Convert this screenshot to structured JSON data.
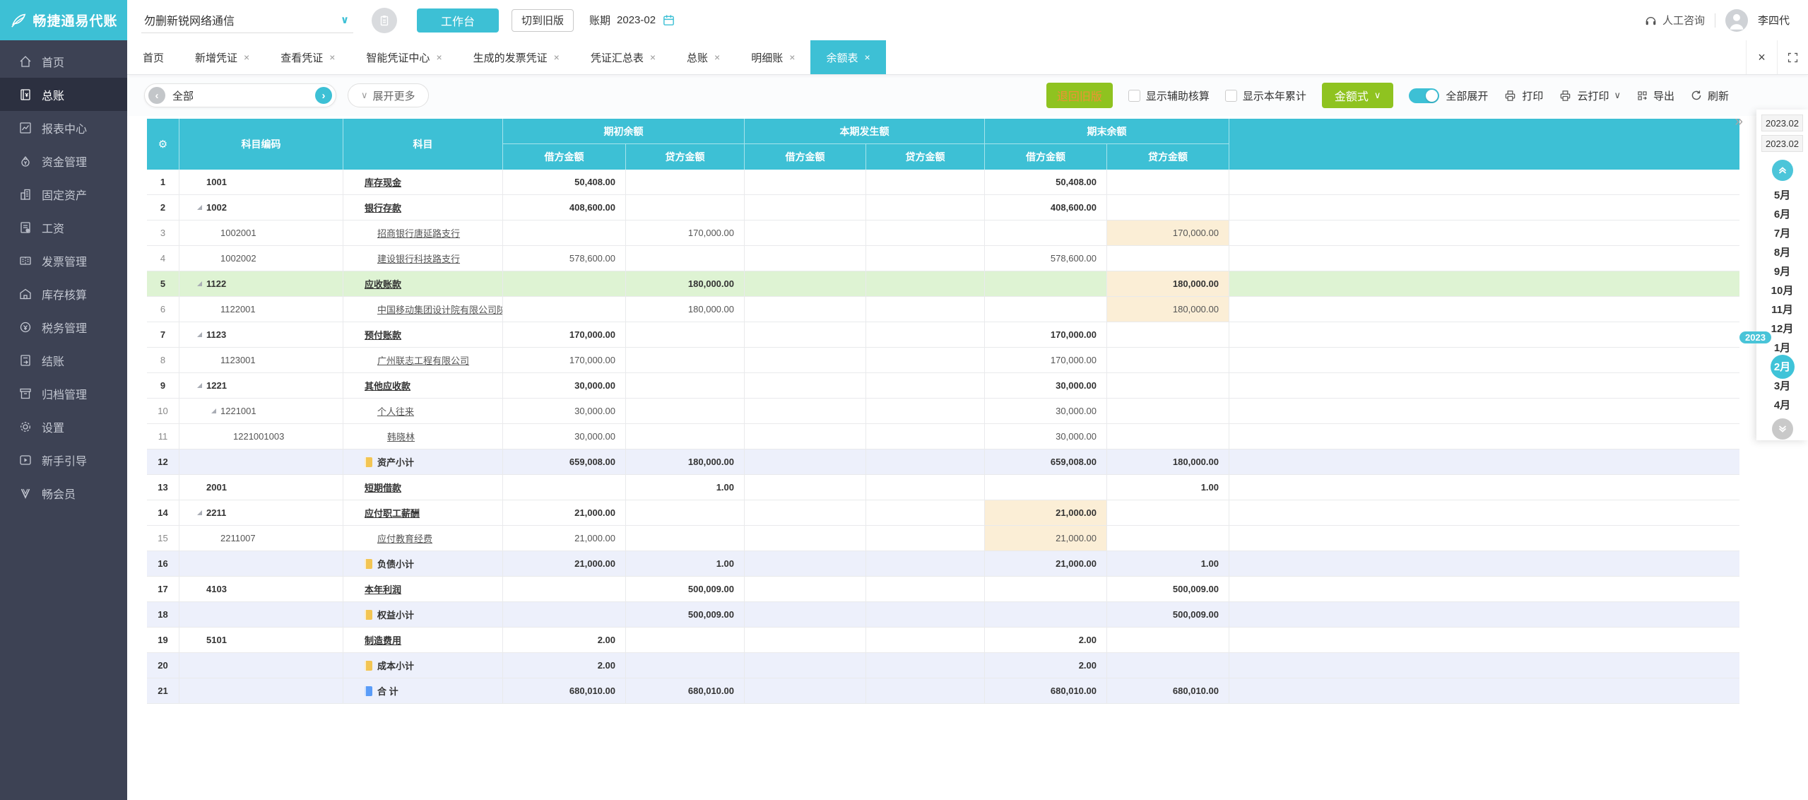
{
  "icons": {
    "close": "×",
    "chevron_down": "∨",
    "chevron_left": "‹",
    "chevron_right": "›",
    "collapse_panel": "»",
    "gear": "⚙"
  },
  "brand": {
    "name": "畅捷通易代账"
  },
  "header": {
    "company": "勿删新锐网络通信",
    "workbench": "工作台",
    "switch_old": "切到旧版",
    "period_label": "账期",
    "period_value": "2023-02",
    "support": "人工咨询",
    "user": "李四代"
  },
  "sidebar": {
    "items": [
      {
        "key": "home",
        "icon": "home",
        "label": "首页",
        "active": false
      },
      {
        "key": "general-ledger",
        "icon": "ledger",
        "label": "总账",
        "active": true
      },
      {
        "key": "report-center",
        "icon": "report",
        "label": "报表中心",
        "active": false
      },
      {
        "key": "funds",
        "icon": "funds",
        "label": "资金管理",
        "active": false
      },
      {
        "key": "fixed-assets",
        "icon": "assets",
        "label": "固定资产",
        "active": false
      },
      {
        "key": "salary",
        "icon": "salary",
        "label": "工资",
        "active": false
      },
      {
        "key": "invoice",
        "icon": "invoice",
        "label": "发票管理",
        "active": false
      },
      {
        "key": "inventory",
        "icon": "inventory",
        "label": "库存核算",
        "active": false
      },
      {
        "key": "tax",
        "icon": "tax",
        "label": "税务管理",
        "active": false
      },
      {
        "key": "closing",
        "icon": "closing",
        "label": "结账",
        "active": false
      },
      {
        "key": "archive",
        "icon": "archive",
        "label": "归档管理",
        "active": false
      },
      {
        "key": "settings",
        "icon": "settings",
        "label": "设置",
        "active": false
      },
      {
        "key": "guide",
        "icon": "guide",
        "label": "新手引导",
        "active": false
      },
      {
        "key": "member",
        "icon": "member",
        "label": "畅会员",
        "active": false
      }
    ]
  },
  "tabs": {
    "items": [
      {
        "key": "home",
        "label": "首页",
        "closable": false,
        "active": false
      },
      {
        "key": "new-voucher",
        "label": "新增凭证",
        "closable": true,
        "active": false
      },
      {
        "key": "view-voucher",
        "label": "查看凭证",
        "closable": true,
        "active": false
      },
      {
        "key": "smart-voucher-center",
        "label": "智能凭证中心",
        "closable": true,
        "active": false
      },
      {
        "key": "generated-invoice-voucher",
        "label": "生成的发票凭证",
        "closable": true,
        "active": false
      },
      {
        "key": "voucher-summary",
        "label": "凭证汇总表",
        "closable": true,
        "active": false
      },
      {
        "key": "general-ledger",
        "label": "总账",
        "closable": true,
        "active": false
      },
      {
        "key": "detail-ledger",
        "label": "明细账",
        "closable": true,
        "active": false
      },
      {
        "key": "balance-sheet",
        "label": "余额表",
        "closable": true,
        "active": true
      }
    ]
  },
  "toolbar": {
    "filter_value": "全部",
    "expand_more": "展开更多",
    "back_to_old": "退回旧版",
    "show_auxiliary": "显示辅助核算",
    "show_ytd": "显示本年累计",
    "amount_style": "金额式",
    "expand_all": "全部展开",
    "print": "打印",
    "cloud_print": "云打印",
    "export": "导出",
    "refresh": "刷新"
  },
  "table": {
    "headers": {
      "code": "科目编码",
      "subject": "科目",
      "groups": [
        "期初余额",
        "本期发生额",
        "期末余额"
      ],
      "debit": "借方金额",
      "credit": "贷方金额"
    },
    "rows": [
      {
        "n": "1",
        "code": "1001",
        "lvl": 0,
        "exp": false,
        "name": "库存现金",
        "link": true,
        "bold": true,
        "bg": "",
        "icon": "",
        "cells": [
          "50,408.00",
          "",
          "",
          "",
          "50,408.00",
          ""
        ],
        "hl": []
      },
      {
        "n": "2",
        "code": "1002",
        "lvl": 0,
        "exp": true,
        "name": "银行存款",
        "link": true,
        "bold": true,
        "bg": "",
        "icon": "",
        "cells": [
          "408,600.00",
          "",
          "",
          "",
          "408,600.00",
          ""
        ],
        "hl": []
      },
      {
        "n": "3",
        "code": "1002001",
        "lvl": 1,
        "exp": false,
        "name": "招商银行唐延路支行",
        "link": true,
        "bold": false,
        "bg": "",
        "icon": "",
        "cells": [
          "",
          "170,000.00",
          "",
          "",
          "",
          "170,000.00"
        ],
        "hl": [
          5
        ]
      },
      {
        "n": "4",
        "code": "1002002",
        "lvl": 1,
        "exp": false,
        "name": "建设银行科技路支行",
        "link": true,
        "bold": false,
        "bg": "",
        "icon": "",
        "cells": [
          "578,600.00",
          "",
          "",
          "",
          "578,600.00",
          ""
        ],
        "hl": []
      },
      {
        "n": "5",
        "code": "1122",
        "lvl": 0,
        "exp": true,
        "name": "应收账款",
        "link": true,
        "bold": true,
        "bg": "green",
        "icon": "",
        "cells": [
          "",
          "180,000.00",
          "",
          "",
          "",
          "180,000.00"
        ],
        "hl": [
          5
        ]
      },
      {
        "n": "6",
        "code": "1122001",
        "lvl": 1,
        "exp": false,
        "name": "中国移动集团设计院有限公司陕",
        "link": true,
        "bold": false,
        "bg": "",
        "icon": "",
        "cells": [
          "",
          "180,000.00",
          "",
          "",
          "",
          "180,000.00"
        ],
        "hl": [
          5
        ]
      },
      {
        "n": "7",
        "code": "1123",
        "lvl": 0,
        "exp": true,
        "name": "预付账款",
        "link": true,
        "bold": true,
        "bg": "",
        "icon": "",
        "cells": [
          "170,000.00",
          "",
          "",
          "",
          "170,000.00",
          ""
        ],
        "hl": []
      },
      {
        "n": "8",
        "code": "1123001",
        "lvl": 1,
        "exp": false,
        "name": "广州联志工程有限公司",
        "link": true,
        "bold": false,
        "bg": "",
        "icon": "",
        "cells": [
          "170,000.00",
          "",
          "",
          "",
          "170,000.00",
          ""
        ],
        "hl": []
      },
      {
        "n": "9",
        "code": "1221",
        "lvl": 0,
        "exp": true,
        "name": "其他应收款",
        "link": true,
        "bold": true,
        "bg": "",
        "icon": "",
        "cells": [
          "30,000.00",
          "",
          "",
          "",
          "30,000.00",
          ""
        ],
        "hl": []
      },
      {
        "n": "10",
        "code": "1221001",
        "lvl": 1,
        "exp": true,
        "name": "个人往来",
        "link": true,
        "bold": false,
        "bg": "",
        "icon": "",
        "cells": [
          "30,000.00",
          "",
          "",
          "",
          "30,000.00",
          ""
        ],
        "hl": []
      },
      {
        "n": "11",
        "code": "1221001003",
        "lvl": 2,
        "exp": false,
        "name": "韩晓林",
        "link": true,
        "bold": false,
        "bg": "",
        "icon": "",
        "cells": [
          "30,000.00",
          "",
          "",
          "",
          "30,000.00",
          ""
        ],
        "hl": []
      },
      {
        "n": "12",
        "code": "",
        "lvl": 0,
        "exp": false,
        "name": "资产小计",
        "link": false,
        "bold": true,
        "bg": "subtotal",
        "icon": "yellow",
        "cells": [
          "659,008.00",
          "180,000.00",
          "",
          "",
          "659,008.00",
          "180,000.00"
        ],
        "hl": []
      },
      {
        "n": "13",
        "code": "2001",
        "lvl": 0,
        "exp": false,
        "name": "短期借款",
        "link": true,
        "bold": true,
        "bg": "",
        "icon": "",
        "cells": [
          "",
          "1.00",
          "",
          "",
          "",
          "1.00"
        ],
        "hl": []
      },
      {
        "n": "14",
        "code": "2211",
        "lvl": 0,
        "exp": true,
        "name": "应付职工薪酬",
        "link": true,
        "bold": true,
        "bg": "",
        "icon": "",
        "cells": [
          "21,000.00",
          "",
          "",
          "",
          "21,000.00",
          ""
        ],
        "hl": [
          4
        ]
      },
      {
        "n": "15",
        "code": "2211007",
        "lvl": 1,
        "exp": false,
        "name": "应付教育经费",
        "link": true,
        "bold": false,
        "bg": "",
        "icon": "",
        "cells": [
          "21,000.00",
          "",
          "",
          "",
          "21,000.00",
          ""
        ],
        "hl": [
          4
        ]
      },
      {
        "n": "16",
        "code": "",
        "lvl": 0,
        "exp": false,
        "name": "负债小计",
        "link": false,
        "bold": true,
        "bg": "subtotal",
        "icon": "yellow",
        "cells": [
          "21,000.00",
          "1.00",
          "",
          "",
          "21,000.00",
          "1.00"
        ],
        "hl": []
      },
      {
        "n": "17",
        "code": "4103",
        "lvl": 0,
        "exp": false,
        "name": "本年利润",
        "link": true,
        "bold": true,
        "bg": "",
        "icon": "",
        "cells": [
          "",
          "500,009.00",
          "",
          "",
          "",
          "500,009.00"
        ],
        "hl": []
      },
      {
        "n": "18",
        "code": "",
        "lvl": 0,
        "exp": false,
        "name": "权益小计",
        "link": false,
        "bold": true,
        "bg": "subtotal",
        "icon": "yellow",
        "cells": [
          "",
          "500,009.00",
          "",
          "",
          "",
          "500,009.00"
        ],
        "hl": []
      },
      {
        "n": "19",
        "code": "5101",
        "lvl": 0,
        "exp": false,
        "name": "制造费用",
        "link": true,
        "bold": true,
        "bg": "",
        "icon": "",
        "cells": [
          "2.00",
          "",
          "",
          "",
          "2.00",
          ""
        ],
        "hl": []
      },
      {
        "n": "20",
        "code": "",
        "lvl": 0,
        "exp": false,
        "name": "成本小计",
        "link": false,
        "bold": true,
        "bg": "subtotal",
        "icon": "yellow",
        "cells": [
          "2.00",
          "",
          "",
          "",
          "2.00",
          ""
        ],
        "hl": []
      },
      {
        "n": "21",
        "code": "",
        "lvl": 0,
        "exp": false,
        "name": "合 计",
        "link": false,
        "bold": true,
        "bg": "subtotal",
        "icon": "blue",
        "cells": [
          "680,010.00",
          "680,010.00",
          "",
          "",
          "680,010.00",
          "680,010.00"
        ],
        "hl": []
      }
    ]
  },
  "month_panel": {
    "period_inputs": [
      "2023.02",
      "2023.02"
    ],
    "year_badge": "2023",
    "months": [
      {
        "label": "5月",
        "active": false,
        "badge": false
      },
      {
        "label": "6月",
        "active": false,
        "badge": false
      },
      {
        "label": "7月",
        "active": false,
        "badge": false
      },
      {
        "label": "8月",
        "active": false,
        "badge": false
      },
      {
        "label": "9月",
        "active": false,
        "badge": false
      },
      {
        "label": "10月",
        "active": false,
        "badge": false
      },
      {
        "label": "11月",
        "active": false,
        "badge": false
      },
      {
        "label": "12月",
        "active": false,
        "badge": false
      },
      {
        "label": "1月",
        "active": false,
        "badge": true
      },
      {
        "label": "2月",
        "active": true,
        "badge": false
      },
      {
        "label": "3月",
        "active": false,
        "badge": false
      },
      {
        "label": "4月",
        "active": false,
        "badge": false
      }
    ]
  }
}
